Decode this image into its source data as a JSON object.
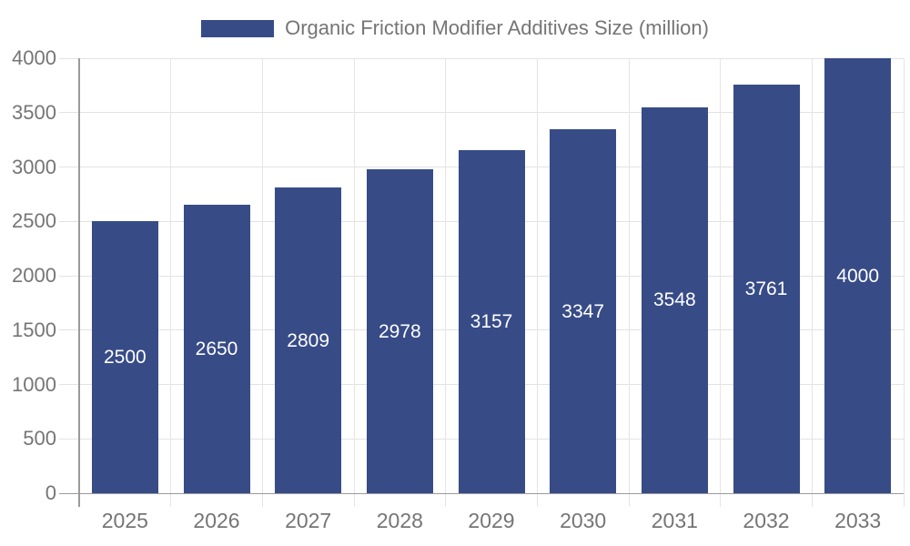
{
  "legend": {
    "label": "Organic Friction Modifier Additives Size (million)"
  },
  "colors": {
    "bar": "#374B87",
    "bar_value_text": "#FFFFFF",
    "axis_text": "#757575",
    "legend_text": "#757575",
    "grid_line": "#E2E2E2",
    "axis_line": "#9A9A9A",
    "background": "#FFFFFF"
  },
  "chart_data": {
    "type": "bar",
    "title": "Organic Friction Modifier Additives Size (million)",
    "categories": [
      "2025",
      "2026",
      "2027",
      "2028",
      "2029",
      "2030",
      "2031",
      "2032",
      "2033"
    ],
    "values": [
      2500,
      2650,
      2809,
      2978,
      3157,
      3347,
      3548,
      3761,
      4000
    ],
    "bar_labels": [
      2500,
      2650,
      2809,
      2978,
      3157,
      3347,
      3548,
      3761,
      4000
    ],
    "xlabel": "",
    "ylabel": "",
    "ylim": [
      0,
      4000
    ],
    "yticks": [
      0,
      500,
      1000,
      1500,
      2000,
      2500,
      3000,
      3500,
      4000
    ],
    "grid": true,
    "legend_position": "top-center"
  }
}
